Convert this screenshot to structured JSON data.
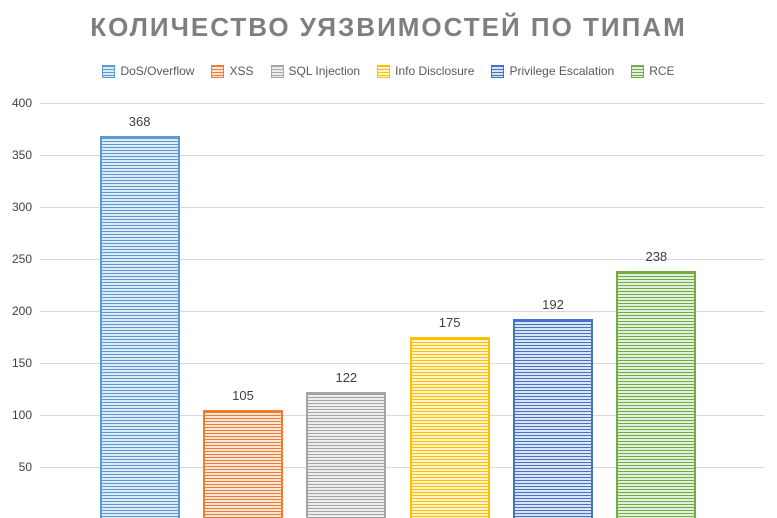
{
  "chart_data": {
    "type": "bar",
    "title": "КОЛИЧЕСТВО УЯЗВИМОСТЕЙ ПО ТИПАМ",
    "categories": [
      "DoS/Overflow",
      "XSS",
      "SQL Injection",
      "Info Disclosure",
      "Privilege Escalation",
      "RCE"
    ],
    "values": [
      368,
      105,
      122,
      175,
      192,
      238
    ],
    "series_colors": [
      {
        "border": "#5B9BD5",
        "fill": "#DEEBF7"
      },
      {
        "border": "#ED7D31",
        "fill": "#FBE5D6"
      },
      {
        "border": "#A5A5A5",
        "fill": "#EDEDED"
      },
      {
        "border": "#FFC000",
        "fill": "#FFF2CC"
      },
      {
        "border": "#4472C4",
        "fill": "#DAE3F3"
      },
      {
        "border": "#70AD47",
        "fill": "#E2EFDA"
      }
    ],
    "bar_pattern": "horizontal-stripes",
    "xlabel": "",
    "ylabel": "",
    "ylim": [
      0,
      400
    ],
    "ytick_step": 50,
    "ytick_labels_visible": [
      "400",
      "350",
      "300",
      "250",
      "200",
      "150",
      "100",
      "50"
    ],
    "grid": true,
    "gridline_color": "#D9D9D9",
    "legend_position": "top",
    "title_color": "#7F7F7F",
    "label_color": "#404040",
    "legend_text_color": "#595959",
    "background": "#FFFFFF"
  }
}
